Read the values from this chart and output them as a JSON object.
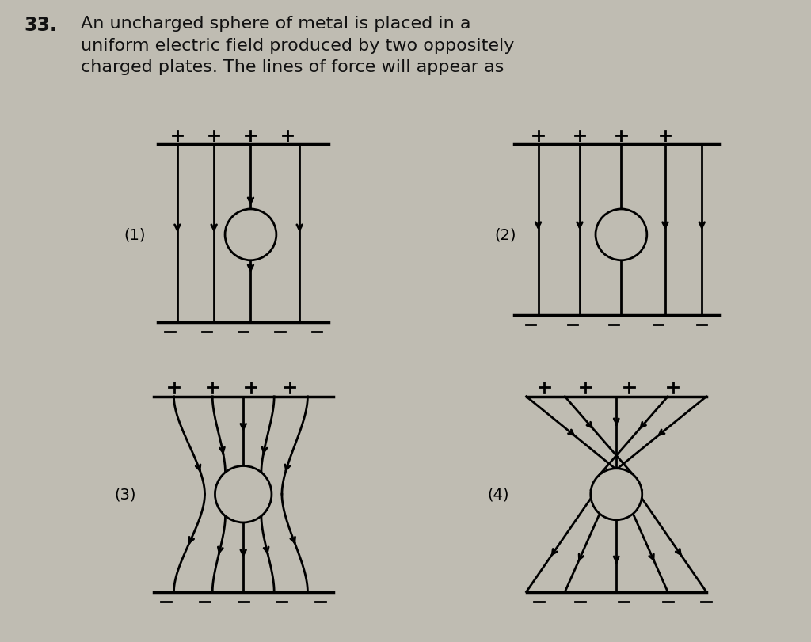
{
  "title_number": "33.",
  "title_text": "An uncharged sphere of metal is placed in a\nuniform electric field produced by two oppositely\ncharged plates. The lines of force will appear as",
  "background_color": "#bfbcb2",
  "text_color": "#111111",
  "diagram_labels": [
    "(1)",
    "(2)",
    "(3)",
    "(4)"
  ],
  "lw": 2.0
}
